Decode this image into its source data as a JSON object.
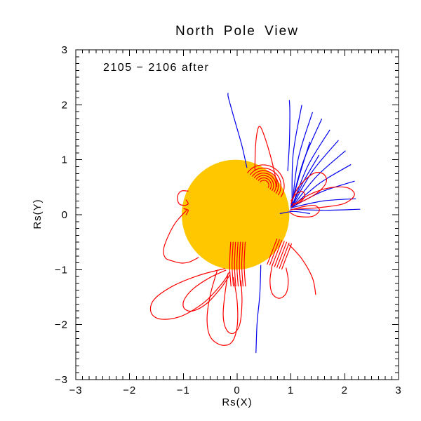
{
  "title": "North Pole View",
  "chart_data": {
    "type": "line",
    "title": "North Pole View",
    "xlabel": "Rs(X)",
    "ylabel": "Rs(Y)",
    "xlim": [
      -3,
      3
    ],
    "ylim": [
      -3,
      3
    ],
    "grid": false,
    "x_tick_values": [
      -3,
      -2,
      -1,
      0,
      1,
      2,
      3
    ],
    "x_tick_labels": [
      "−3",
      "−2",
      "−1",
      "0",
      "1",
      "2",
      "3"
    ],
    "y_tick_values": [
      -3,
      -2,
      -1,
      0,
      1,
      2,
      3
    ],
    "y_tick_labels": [
      "−3",
      "−2",
      "−1",
      "0",
      "1",
      "2",
      "3"
    ],
    "minor_tick_step": 0.125,
    "axis_color": "#000000",
    "annotation": {
      "text": "2105 − 2106 after",
      "x": -2.48,
      "y": 2.6
    },
    "sun": {
      "cx": -0.03,
      "cy": 0.0,
      "r": 1.0,
      "color": "#FFC700"
    },
    "series": [
      {
        "name": "open-field-line",
        "color": "#0000EE",
        "paths": [
          [
            [
              0.18,
              0.86
            ],
            [
              0.09,
              1.25
            ],
            [
              -0.04,
              1.7
            ],
            [
              -0.16,
              2.12
            ],
            [
              -0.17,
              2.21
            ]
          ],
          [
            [
              0.94,
              0.8
            ],
            [
              0.97,
              1.3
            ],
            [
              0.98,
              1.86
            ],
            [
              0.97,
              2.08
            ]
          ],
          [
            [
              1.02,
              0.18
            ],
            [
              1.04,
              1.09
            ],
            [
              1.2,
              1.99
            ]
          ],
          [
            [
              1.02,
              0.16
            ],
            [
              1.14,
              1.04
            ],
            [
              1.4,
              1.86
            ]
          ],
          [
            [
              1.0,
              0.16
            ],
            [
              1.23,
              0.97
            ],
            [
              1.57,
              1.74
            ]
          ],
          [
            [
              1.02,
              0.15
            ],
            [
              1.31,
              0.88
            ],
            [
              1.72,
              1.54
            ]
          ],
          [
            [
              1.02,
              0.15
            ],
            [
              1.4,
              0.79
            ],
            [
              1.88,
              1.35
            ]
          ],
          [
            [
              1.02,
              0.14
            ],
            [
              1.47,
              0.69
            ],
            [
              2.01,
              1.16
            ]
          ],
          [
            [
              1.02,
              0.14
            ],
            [
              1.53,
              0.57
            ],
            [
              2.11,
              0.91
            ]
          ],
          [
            [
              1.02,
              0.14
            ],
            [
              1.58,
              0.42
            ],
            [
              2.18,
              0.61
            ]
          ],
          [
            [
              1.02,
              0.13
            ],
            [
              1.6,
              0.25
            ],
            [
              2.2,
              0.29
            ]
          ],
          [
            [
              1.0,
              0.1
            ],
            [
              1.63,
              0.08
            ],
            [
              2.28,
              0.1
            ]
          ],
          [
            [
              1.0,
              0.12
            ],
            [
              1.22,
              0.58
            ],
            [
              1.52,
              1.08
            ]
          ],
          [
            [
              1.0,
              0.14
            ],
            [
              1.16,
              0.72
            ],
            [
              1.35,
              1.32
            ]
          ],
          [
            [
              0.8,
              0.02
            ],
            [
              1.05,
              0.06
            ],
            [
              1.35,
              0.02
            ]
          ],
          [
            [
              0.44,
              -0.92
            ],
            [
              0.42,
              -1.46
            ],
            [
              0.37,
              -1.97
            ],
            [
              0.35,
              -2.51
            ]
          ]
        ],
        "arc_families": []
      },
      {
        "name": "closed-field-line",
        "color": "#FF0000",
        "paths": [
          [
            [
              0.33,
              0.8
            ],
            [
              0.34,
              1.23
            ],
            [
              0.38,
              1.54
            ],
            [
              0.43,
              1.6
            ],
            [
              0.51,
              1.42
            ],
            [
              0.63,
              1.03
            ],
            [
              0.72,
              0.65
            ],
            [
              0.74,
              0.51
            ]
          ],
          [
            [
              1.0,
              0.2
            ],
            [
              1.13,
              0.49
            ],
            [
              1.4,
              0.74
            ],
            [
              1.59,
              0.75
            ],
            [
              1.66,
              0.61
            ],
            [
              1.53,
              0.43
            ],
            [
              1.27,
              0.27
            ],
            [
              1.04,
              0.18
            ]
          ],
          [
            [
              1.0,
              0.14
            ],
            [
              1.33,
              0.36
            ],
            [
              1.72,
              0.49
            ],
            [
              2.05,
              0.49
            ],
            [
              2.18,
              0.36
            ],
            [
              1.98,
              0.2
            ],
            [
              1.53,
              0.13
            ],
            [
              1.07,
              0.1
            ]
          ],
          [
            [
              0.98,
              0.08
            ],
            [
              1.2,
              0.14
            ],
            [
              1.43,
              0.17
            ],
            [
              1.53,
              0.08
            ],
            [
              1.4,
              -0.03
            ],
            [
              1.13,
              -0.03
            ],
            [
              0.98,
              0.04
            ]
          ],
          [
            [
              1.0,
              0.25
            ],
            [
              1.1,
              0.38
            ],
            [
              1.22,
              0.42
            ],
            [
              1.25,
              0.32
            ],
            [
              1.15,
              0.22
            ],
            [
              1.03,
              0.2
            ]
          ],
          [
            [
              -0.91,
              0.43
            ],
            [
              -1.04,
              0.43
            ],
            [
              -1.11,
              0.33
            ],
            [
              -1.08,
              0.2
            ],
            [
              -0.98,
              0.17
            ],
            [
              -0.91,
              0.2
            ],
            [
              -0.95,
              0.27
            ]
          ],
          [
            [
              -0.99,
              0.11
            ],
            [
              -0.91,
              0.08
            ],
            [
              -0.95,
              0.0
            ]
          ],
          [
            [
              -0.94,
              0.08
            ],
            [
              -1.15,
              -0.15
            ],
            [
              -1.3,
              -0.43
            ],
            [
              -1.37,
              -0.65
            ],
            [
              -1.33,
              -0.79
            ],
            [
              -1.21,
              -0.84
            ],
            [
              -1.04,
              -0.88
            ],
            [
              -0.89,
              -0.86
            ],
            [
              -0.72,
              -0.78
            ]
          ],
          [
            [
              -0.23,
              -0.98
            ],
            [
              -0.7,
              -1.1
            ],
            [
              -1.2,
              -1.3
            ],
            [
              -1.55,
              -1.55
            ],
            [
              -1.6,
              -1.78
            ],
            [
              -1.42,
              -1.9
            ],
            [
              -1.05,
              -1.85
            ],
            [
              -0.62,
              -1.6
            ],
            [
              -0.28,
              -1.25
            ],
            [
              -0.15,
              -1.05
            ]
          ],
          [
            [
              -0.21,
              -1.01
            ],
            [
              -0.5,
              -1.14
            ],
            [
              -0.82,
              -1.35
            ],
            [
              -0.99,
              -1.56
            ],
            [
              -0.98,
              -1.71
            ],
            [
              -0.82,
              -1.75
            ],
            [
              -0.56,
              -1.61
            ],
            [
              -0.3,
              -1.33
            ],
            [
              -0.14,
              -1.1
            ]
          ],
          [
            [
              -0.37,
              -1.01
            ],
            [
              -0.5,
              -1.46
            ],
            [
              -0.56,
              -1.9
            ],
            [
              -0.5,
              -2.22
            ],
            [
              -0.3,
              -2.37
            ],
            [
              -0.1,
              -2.32
            ],
            [
              0.0,
              -2.03
            ],
            [
              0.0,
              -1.58
            ],
            [
              -0.07,
              -1.14
            ]
          ],
          [
            [
              -0.17,
              -1.07
            ],
            [
              -0.23,
              -1.46
            ],
            [
              -0.26,
              -1.84
            ],
            [
              -0.2,
              -2.09
            ],
            [
              -0.07,
              -2.16
            ],
            [
              0.05,
              -1.99
            ],
            [
              0.09,
              -1.58
            ],
            [
              0.07,
              -1.2
            ]
          ],
          [
            [
              0.65,
              -0.92
            ],
            [
              0.61,
              -1.2
            ],
            [
              0.65,
              -1.43
            ],
            [
              0.78,
              -1.52
            ],
            [
              0.91,
              -1.43
            ],
            [
              0.95,
              -1.2
            ],
            [
              0.91,
              -0.97
            ]
          ],
          [
            [
              0.97,
              -0.55
            ],
            [
              1.2,
              -0.8
            ],
            [
              1.4,
              -1.15
            ],
            [
              1.46,
              -1.45
            ]
          ],
          [
            [
              -0.12,
              -0.5
            ],
            [
              -0.14,
              -0.92
            ],
            [
              -0.115,
              -1.3
            ]
          ],
          [
            [
              -0.075,
              -0.5
            ],
            [
              -0.095,
              -0.92
            ],
            [
              -0.07,
              -1.3
            ]
          ],
          [
            [
              -0.03,
              -0.5
            ],
            [
              -0.05,
              -0.92
            ],
            [
              -0.025,
              -1.3
            ]
          ],
          [
            [
              0.015,
              -0.5
            ],
            [
              -0.005,
              -0.92
            ],
            [
              0.02,
              -1.3
            ]
          ],
          [
            [
              0.06,
              -0.5
            ],
            [
              0.04,
              -0.92
            ],
            [
              0.065,
              -1.3
            ]
          ],
          [
            [
              0.105,
              -0.5
            ],
            [
              0.085,
              -0.92
            ],
            [
              0.11,
              -1.3
            ]
          ],
          [
            [
              0.15,
              -0.5
            ],
            [
              0.13,
              -0.92
            ],
            [
              0.155,
              -1.3
            ]
          ],
          [
            [
              0.56,
              -0.9
            ],
            [
              0.65,
              -0.67
            ],
            [
              0.74,
              -0.44
            ]
          ],
          [
            [
              0.605,
              -0.915
            ],
            [
              0.695,
              -0.685
            ],
            [
              0.785,
              -0.455
            ]
          ],
          [
            [
              0.65,
              -0.93
            ],
            [
              0.74,
              -0.7
            ],
            [
              0.83,
              -0.47
            ]
          ],
          [
            [
              0.695,
              -0.945
            ],
            [
              0.785,
              -0.715
            ],
            [
              0.875,
              -0.485
            ]
          ],
          [
            [
              0.74,
              -0.96
            ],
            [
              0.83,
              -0.73
            ],
            [
              0.92,
              -0.5
            ]
          ],
          [
            [
              0.785,
              -0.975
            ],
            [
              0.875,
              -0.745
            ],
            [
              0.965,
              -0.515
            ]
          ],
          [
            [
              0.83,
              -0.99
            ],
            [
              0.92,
              -0.76
            ],
            [
              1.01,
              -0.53
            ]
          ]
        ],
        "arc_families": [
          {
            "cx": 0.5,
            "cy": 0.54,
            "tilt_deg": -35,
            "aspect": 0.95,
            "heights": [
              0.09,
              0.135,
              0.18,
              0.225,
              0.27,
              0.32,
              0.38
            ]
          }
        ]
      }
    ]
  }
}
